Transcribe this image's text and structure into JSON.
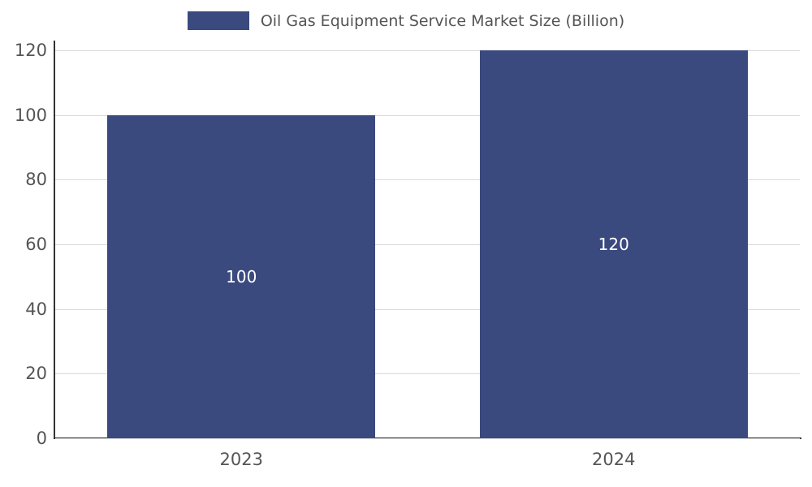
{
  "chart_data": {
    "type": "bar",
    "title": "Oil Gas Equipment Service Market Size (Billion)",
    "categories": [
      "2023",
      "2024"
    ],
    "series": [
      {
        "name": "Oil Gas Equipment Service Market Size (Billion)",
        "values": [
          100,
          120
        ]
      }
    ],
    "value_labels": [
      "100",
      "120"
    ],
    "xlabel": "",
    "ylabel": "",
    "ylim": [
      0,
      120
    ],
    "yticks": [
      0,
      20,
      40,
      60,
      80,
      100,
      120
    ],
    "grid": true,
    "legend_position": "top-center",
    "colors": {
      "bar": "#3A4A7E",
      "value_label": "#ffffff",
      "tick_label": "#555555",
      "gridline": "#d9d9d9",
      "spine": "#333333",
      "background": "#ffffff"
    }
  }
}
